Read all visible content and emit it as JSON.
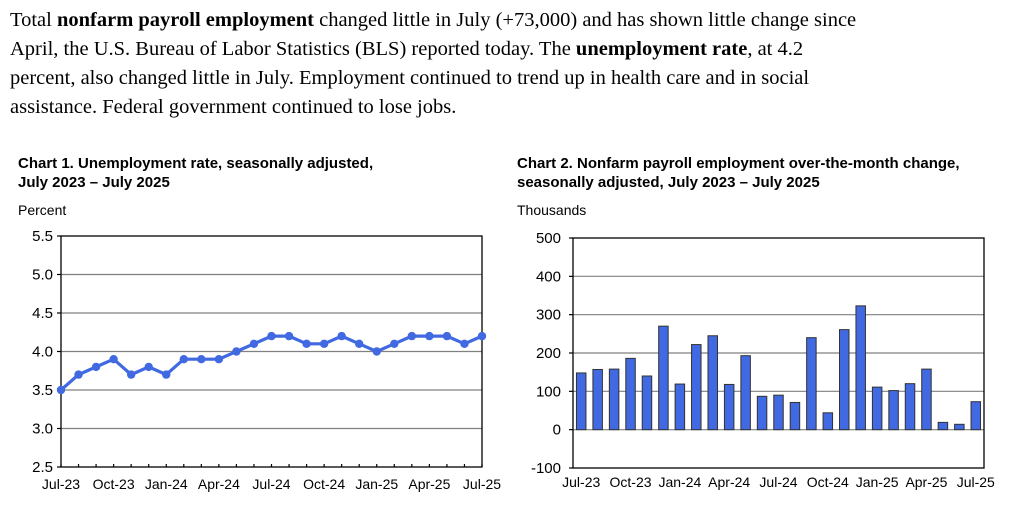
{
  "intro": {
    "lines": [
      {
        "s0": "Total ",
        "b": "nonfarm payroll employment",
        "s1": " changed little in July (+73,000) and has shown little change since"
      },
      {
        "s0": "April, the U.S. Bureau of Labor Statistics (BLS) reported today. The ",
        "b": "unemployment rate",
        "s1": ", at 4.2"
      },
      {
        "s0": "percent, also changed little in July. Employment continued to trend up in health care and in social"
      },
      {
        "s0": "assistance. Federal government continued to lose jobs."
      }
    ]
  },
  "colors": {
    "accent": "#4169E1",
    "bar_outline": "#333333",
    "grid": "#808080",
    "axis": "#000000"
  },
  "chart_data": [
    {
      "type": "line",
      "title": "Chart 1. Unemployment rate, seasonally adjusted, July 2023 – July 2025",
      "unit_label": "Percent",
      "categories": [
        "Jul-23",
        "Aug-23",
        "Sep-23",
        "Oct-23",
        "Nov-23",
        "Dec-23",
        "Jan-24",
        "Feb-24",
        "Mar-24",
        "Apr-24",
        "May-24",
        "Jun-24",
        "Jul-24",
        "Aug-24",
        "Sep-24",
        "Oct-24",
        "Nov-24",
        "Dec-24",
        "Jan-25",
        "Feb-25",
        "Mar-25",
        "Apr-25",
        "May-25",
        "Jun-25",
        "Jul-25"
      ],
      "values": [
        3.5,
        3.7,
        3.8,
        3.9,
        3.7,
        3.8,
        3.7,
        3.9,
        3.9,
        3.9,
        4.0,
        4.1,
        4.2,
        4.2,
        4.1,
        4.1,
        4.2,
        4.1,
        4.0,
        4.1,
        4.2,
        4.2,
        4.2,
        4.1,
        4.2
      ],
      "ylim": [
        2.5,
        5.5
      ],
      "ytick_labels": [
        "5.5",
        "5.0",
        "4.5",
        "4.0",
        "3.5",
        "3.0",
        "2.5"
      ],
      "xtick_labels": [
        "Jul-23",
        "Oct-23",
        "Jan-24",
        "Apr-24",
        "Jul-24",
        "Oct-24",
        "Jan-25",
        "Apr-25",
        "Jul-25"
      ],
      "grid": true,
      "legend": "none",
      "xlabel": "",
      "ylabel": "Percent"
    },
    {
      "type": "bar",
      "title": "Chart 2. Nonfarm payroll employment over-the-month change, seasonally adjusted, July 2023 – July 2025",
      "unit_label": "Thousands",
      "categories": [
        "Jul-23",
        "Aug-23",
        "Sep-23",
        "Oct-23",
        "Nov-23",
        "Dec-23",
        "Jan-24",
        "Feb-24",
        "Mar-24",
        "Apr-24",
        "May-24",
        "Jun-24",
        "Jul-24",
        "Aug-24",
        "Sep-24",
        "Oct-24",
        "Nov-24",
        "Dec-24",
        "Jan-25",
        "Feb-25",
        "Mar-25",
        "Apr-25",
        "May-25",
        "Jun-25",
        "Jul-25"
      ],
      "values": [
        148,
        157,
        158,
        186,
        140,
        270,
        119,
        222,
        245,
        118,
        193,
        87,
        90,
        71,
        240,
        44,
        261,
        323,
        111,
        102,
        120,
        158,
        19,
        14,
        73
      ],
      "ylim": [
        -100,
        500
      ],
      "ytick_labels": [
        "500",
        "400",
        "300",
        "200",
        "100",
        "0",
        "-100"
      ],
      "xtick_labels": [
        "Jul-23",
        "Oct-23",
        "Jan-24",
        "Apr-24",
        "Jul-24",
        "Oct-24",
        "Jan-25",
        "Apr-25",
        "Jul-25"
      ],
      "grid": true,
      "legend": "none",
      "xlabel": "",
      "ylabel": "Thousands"
    }
  ]
}
